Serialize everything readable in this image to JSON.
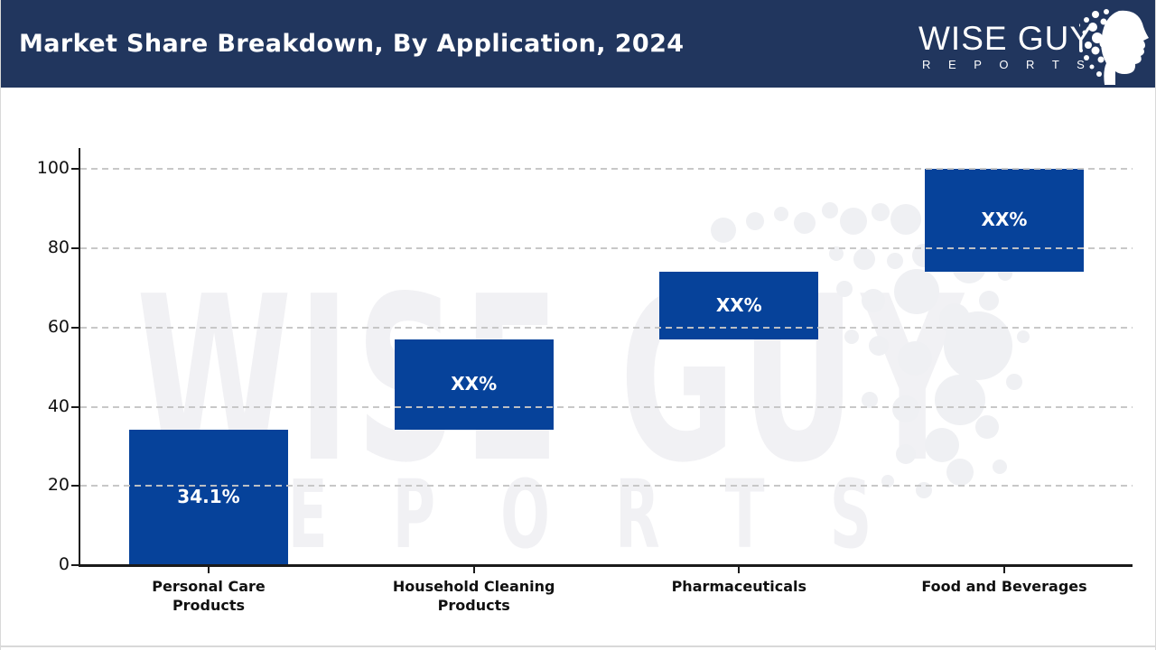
{
  "header": {
    "title": "Market Share Breakdown, By Application, 2024",
    "bg_color": "#21365e",
    "logo": {
      "line1": "WISE GUY",
      "line2": "R E P O R T S"
    }
  },
  "watermark": {
    "line1": "WISE GUY",
    "line2": "R E P O R T S"
  },
  "chart_data": {
    "type": "bar",
    "subtype": "waterfall-floating-bars",
    "title": "Market Share Breakdown, By Application, 2024",
    "categories": [
      "Personal Care Products",
      "Household Cleaning Products",
      "Pharmaceuticals",
      "Food and Beverages"
    ],
    "category_lines": [
      [
        "Personal Care",
        "Products"
      ],
      [
        "Household Cleaning",
        "Products"
      ],
      [
        "Pharmaceuticals"
      ],
      [
        "Food and Beverages"
      ]
    ],
    "bars": [
      {
        "category": "Personal Care Products",
        "start": 0,
        "end": 34.1,
        "label": "34.1%"
      },
      {
        "category": "Household Cleaning Products",
        "start": 34.1,
        "end": 57,
        "label": "XX%"
      },
      {
        "category": "Pharmaceuticals",
        "start": 57,
        "end": 74,
        "label": "XX%"
      },
      {
        "category": "Food and Beverages",
        "start": 74,
        "end": 100,
        "label": "XX%"
      }
    ],
    "y_ticks": [
      0,
      20,
      40,
      60,
      80,
      100
    ],
    "ylim": [
      0,
      105
    ],
    "xlabel": "",
    "ylabel": "",
    "legend": null,
    "grid": "horizontal-dashed-over-bars",
    "bar_color": "#06429a",
    "grid_color": "#c5c5c5",
    "axis_color": "#1a1a1a",
    "label_color": "#ffffff"
  }
}
